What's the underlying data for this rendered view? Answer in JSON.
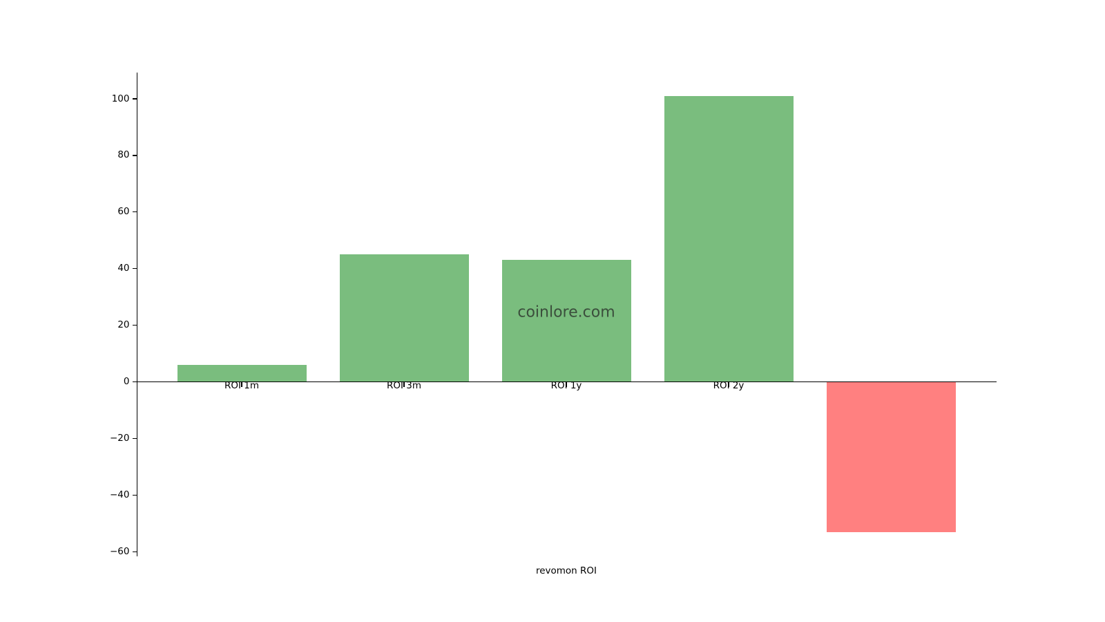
{
  "page": {
    "background_color": "#ffffff"
  },
  "watermark": {
    "text": "coinlore.com"
  },
  "chart_data": {
    "type": "bar",
    "title": "",
    "xlabel": "revomon ROI",
    "ylabel": "",
    "categories": [
      "ROI 1m",
      "ROI 3m",
      "ROI 1y",
      "ROI 2y",
      ""
    ],
    "values": [
      6,
      45,
      43,
      101,
      -53
    ],
    "yticks": [
      100,
      80,
      60,
      40,
      20,
      0,
      -20,
      -40,
      -60
    ],
    "ylim": [
      -61.5,
      109.3
    ],
    "grid": false,
    "legend_position": "none",
    "colors": {
      "positive_bar": "#7abd7e",
      "negative_bar": "#ff8080",
      "axis": "#000000",
      "tick_label": "#000000"
    },
    "note_fifth_label": ""
  }
}
